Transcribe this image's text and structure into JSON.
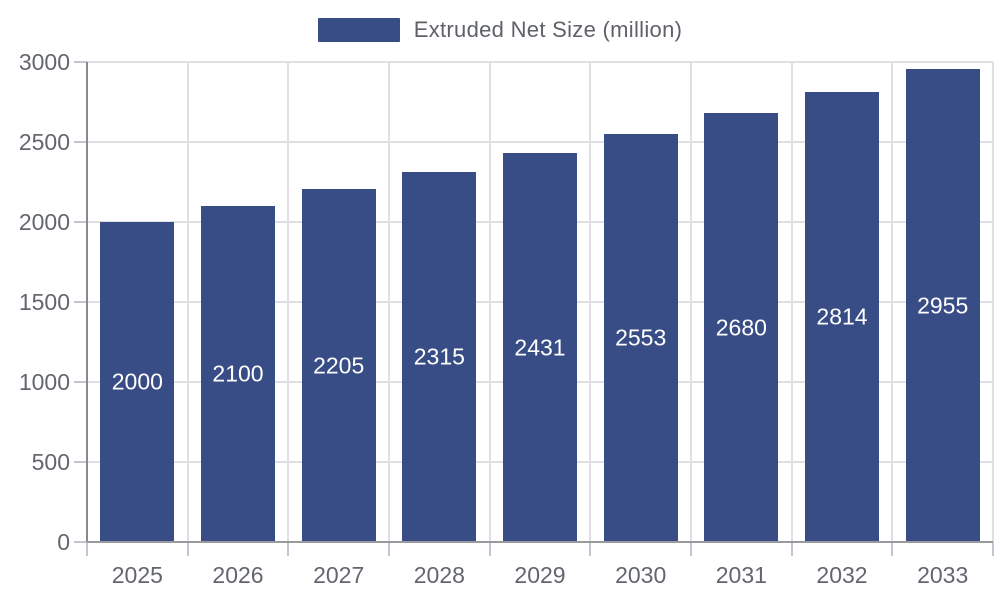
{
  "legend": {
    "label": "Extruded Net Size (million)"
  },
  "colors": {
    "bar": "#384C85",
    "value_label": "#FFFFFF",
    "axis_label": "#63666E",
    "grid": "#E0E0E4",
    "x_axis_line": "#9A9A9E",
    "y_axis_line": "#8A8A8E",
    "tick": "#C2C6D0"
  },
  "chart_data": {
    "type": "bar",
    "title": "Extruded Net Size (million)",
    "categories": [
      "2025",
      "2026",
      "2027",
      "2028",
      "2029",
      "2030",
      "2031",
      "2032",
      "2033"
    ],
    "series": [
      {
        "name": "Extruded Net Size (million)",
        "values": [
          2000,
          2100,
          2205,
          2315,
          2431,
          2553,
          2680,
          2814,
          2955
        ]
      }
    ],
    "xlabel": "",
    "ylabel": "",
    "ylim": [
      0,
      3000
    ],
    "yticks": [
      0,
      500,
      1000,
      1500,
      2000,
      2500,
      3000
    ],
    "grid": true,
    "legend_position": "top",
    "value_label_position": "inside-center"
  }
}
